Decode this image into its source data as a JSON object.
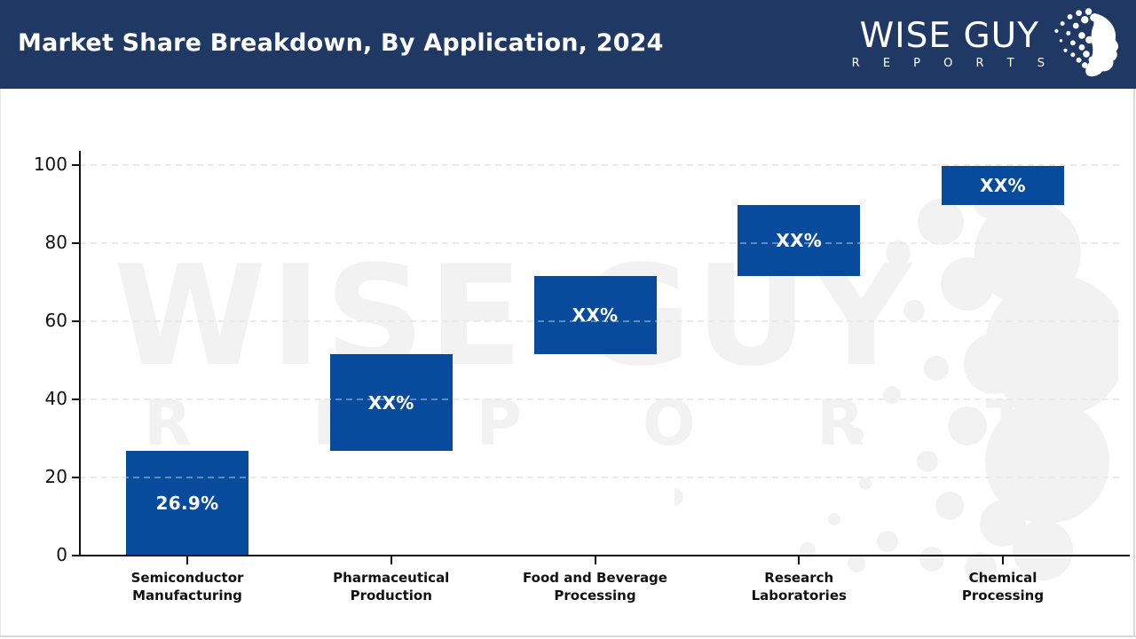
{
  "header": {
    "title": "Market Share Breakdown, By Application, 2024",
    "bg_color": "#1f3864",
    "logo": {
      "line1": "WISE GUY",
      "line2": "R E P O R T S",
      "head_icon": "dotted-head-profile-icon"
    }
  },
  "watermark": {
    "line1": "WISE GUY",
    "line2": "R E P O R T S",
    "color": "#f2f2f2"
  },
  "chart_data": {
    "type": "bar",
    "subtype": "waterfall-breakdown",
    "title": "Market Share Breakdown, By Application, 2024",
    "categories": [
      "Semiconductor Manufacturing",
      "Pharmaceutical Production",
      "Food and Beverage Processing",
      "Research Laboratories",
      "Chemical Processing"
    ],
    "category_label_lines": [
      [
        "Semiconductor",
        "Manufacturing"
      ],
      [
        "Pharmaceutical",
        "Production"
      ],
      [
        "Food and Beverage",
        "Processing"
      ],
      [
        "Research",
        "Laboratories"
      ],
      [
        "Chemical",
        "Processing"
      ]
    ],
    "bars": [
      {
        "category": "Semiconductor Manufacturing",
        "start": 0,
        "end": 26.9,
        "label": "26.9%"
      },
      {
        "category": "Pharmaceutical Production",
        "start": 26.9,
        "end": 51.5,
        "label": "XX%"
      },
      {
        "category": "Food and Beverage Processing",
        "start": 51.5,
        "end": 71.6,
        "label": "XX%"
      },
      {
        "category": "Research Laboratories",
        "start": 71.6,
        "end": 89.8,
        "label": "XX%"
      },
      {
        "category": "Chemical Processing",
        "start": 89.8,
        "end": 99.8,
        "label": "XX%"
      }
    ],
    "xlabel": "",
    "ylabel": "",
    "yticks": [
      0,
      20,
      40,
      60,
      80,
      100
    ],
    "ylim": [
      0,
      105
    ],
    "grid": "horizontal-dashed",
    "legend": null,
    "bar_color": "#084a9c",
    "grid_color": "#e0e0e0",
    "axis_color": "#111111"
  }
}
